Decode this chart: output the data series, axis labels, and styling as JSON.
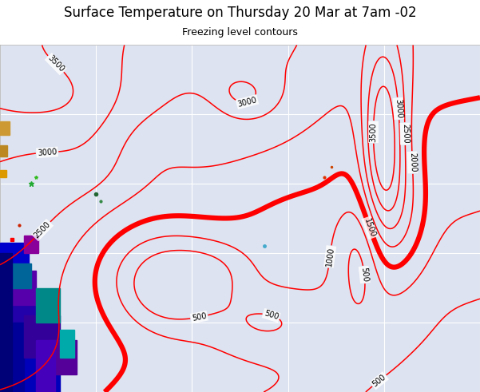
{
  "title": "Surface Temperature on Thursday 20 Mar at 7am -02",
  "subtitle": "Freezing level contours",
  "title_fontsize": 12,
  "subtitle_fontsize": 9,
  "background_map_color": "#dde3f0",
  "contour_color": "red",
  "contour_linewidth": 1.1,
  "thick_contour_linewidth": 4.5,
  "label_fontsize": 7.5,
  "grid_color": "white",
  "grid_linewidth": 0.8,
  "xlim": [
    -42,
    -22
  ],
  "ylim": [
    -59,
    -49
  ],
  "figsize": [
    6.01,
    4.91
  ],
  "dpi": 100,
  "contour_levels": [
    500,
    1000,
    1500,
    2000,
    2500,
    3000,
    3500
  ],
  "thick_level": 1500
}
